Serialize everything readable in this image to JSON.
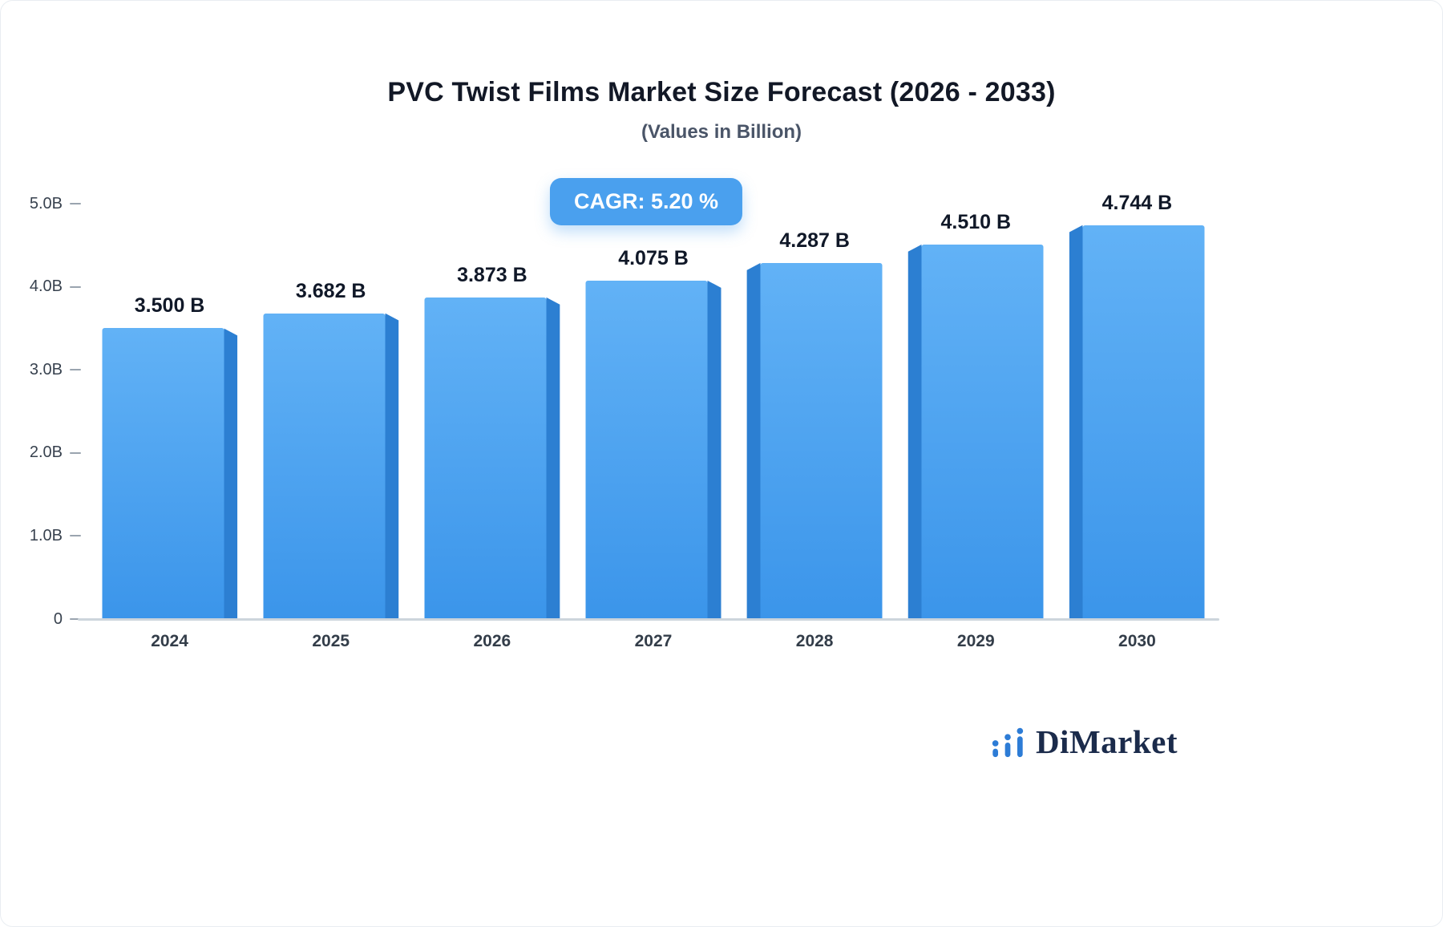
{
  "title": "PVC Twist Films Market Size Forecast (2026 - 2033)",
  "subtitle": "(Values in Billion)",
  "cagr": {
    "label": "CAGR: 5.20 %"
  },
  "brand": {
    "name": "DiMarket",
    "icon": "bar-chart-dots-icon",
    "color": "#2D7CD6",
    "text_color": "#1B2B4B"
  },
  "chart_data": {
    "type": "bar",
    "title": "PVC Twist Films Market Size Forecast (2026 - 2033)",
    "subtitle": "(Values in Billion)",
    "categories": [
      "2024",
      "2025",
      "2026",
      "2027",
      "2028",
      "2029",
      "2030"
    ],
    "values": [
      3.5,
      3.682,
      3.873,
      4.075,
      4.287,
      4.51,
      4.744
    ],
    "value_labels": [
      "3.500 B",
      "3.682 B",
      "3.873 B",
      "4.075 B",
      "4.287 B",
      "4.510 B",
      "4.744 B"
    ],
    "unit": "Billion",
    "xlabel": "",
    "ylabel": "",
    "ylim": [
      0,
      5
    ],
    "yticks": [
      "0",
      "1.0B",
      "2.0B",
      "3.0B",
      "4.0B",
      "5.0B"
    ],
    "grid": false,
    "legend": false,
    "annotations": [
      "CAGR: 5.20 %"
    ],
    "colors": {
      "bar_top": "#62B2F6",
      "bar_bottom": "#3B95EA",
      "bar_side": "#2C7FD2",
      "badge_bg": "#4AA0EE",
      "badge_text": "#FFFFFF",
      "axis_text": "#38424F",
      "value_label": "#101828",
      "baseline": "#CDD5DC"
    }
  }
}
